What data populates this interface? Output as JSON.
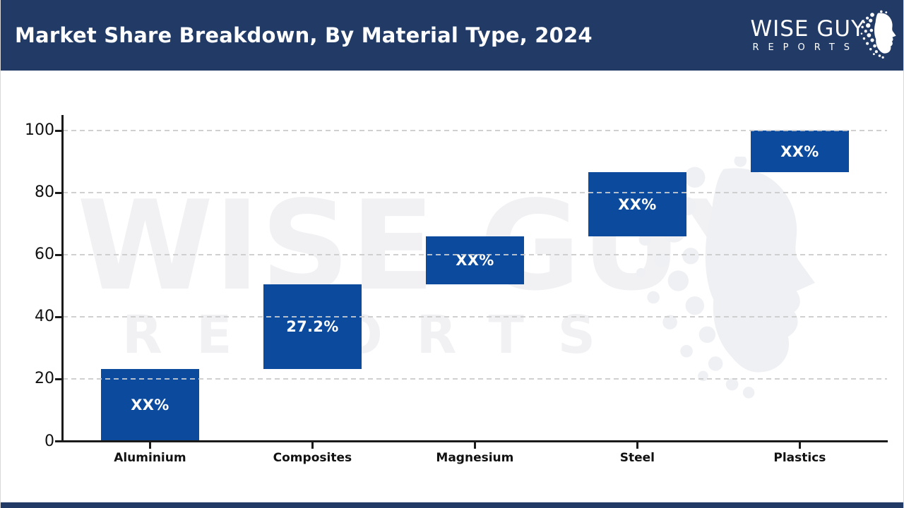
{
  "header": {
    "title": "Market Share Breakdown, By Material Type, 2024",
    "bg_color": "#213a66",
    "logo": {
      "line1": "WISE GUY",
      "line2": "REPORTS"
    }
  },
  "watermark": {
    "line1": "WISE GUY",
    "line2": "REPORTS"
  },
  "chart_data": {
    "type": "bar",
    "subtype": "waterfall",
    "title": "Market Share Breakdown, By Material Type, 2024",
    "xlabel": "",
    "ylabel": "",
    "categories": [
      "Aluminium",
      "Composites",
      "Magnesium",
      "Steel",
      "Plastics"
    ],
    "segments": [
      {
        "start": 0,
        "end": 23.2,
        "label": "XX%"
      },
      {
        "start": 23.2,
        "end": 50.4,
        "label": "27.2%"
      },
      {
        "start": 50.4,
        "end": 65.9,
        "label": "XX%"
      },
      {
        "start": 65.9,
        "end": 86.6,
        "label": "XX%"
      },
      {
        "start": 86.6,
        "end": 100,
        "label": "XX%"
      }
    ],
    "yticks": [
      0,
      20,
      40,
      60,
      80,
      100
    ],
    "ylim": [
      0,
      105
    ],
    "bar_color": "#0b4a9d",
    "grid": "dashed horizontal, drawn over bars",
    "legend": "none"
  },
  "footer": {
    "bg_color": "#213a66"
  }
}
